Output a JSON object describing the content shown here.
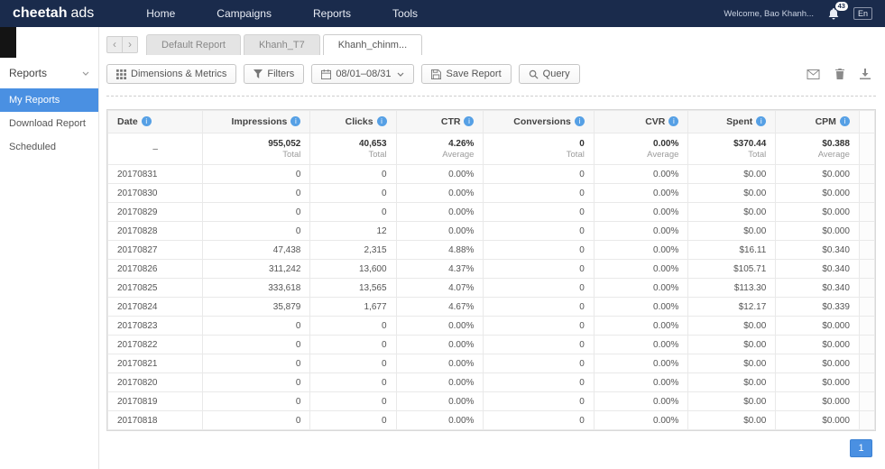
{
  "topbar": {
    "brand": {
      "bold": "cheetah",
      "light": "ads"
    },
    "nav": [
      "Home",
      "Campaigns",
      "Reports",
      "Tools"
    ],
    "welcome_label": "Welcome,",
    "username": "Bao Khanh...",
    "notification_count": "43",
    "language": "En"
  },
  "sidebar": {
    "section_label": "Reports",
    "items": [
      {
        "label": "My Reports",
        "active": true
      },
      {
        "label": "Download Report",
        "active": false
      },
      {
        "label": "Scheduled",
        "active": false
      }
    ]
  },
  "tabs": {
    "items": [
      {
        "label": "Default Report",
        "active": false
      },
      {
        "label": "Khanh_T7",
        "active": false
      },
      {
        "label": "Khanh_chinm...",
        "active": true
      }
    ]
  },
  "toolbar": {
    "dimensions_metrics_label": "Dimensions & Metrics",
    "filters_label": "Filters",
    "date_range_label": "08/01–08/31",
    "save_report_label": "Save Report",
    "query_label": "Query"
  },
  "table": {
    "columns": [
      "Date",
      "Impressions",
      "Clicks",
      "CTR",
      "Conversions",
      "CVR",
      "Spent",
      "CPM"
    ],
    "summary_row": {
      "date": "–",
      "cells": [
        {
          "value": "955,052",
          "sub": "Total"
        },
        {
          "value": "40,653",
          "sub": "Total"
        },
        {
          "value": "4.26%",
          "sub": "Average"
        },
        {
          "value": "0",
          "sub": "Total"
        },
        {
          "value": "0.00%",
          "sub": "Average"
        },
        {
          "value": "$370.44",
          "sub": "Total"
        },
        {
          "value": "$0.388",
          "sub": "Average"
        }
      ]
    },
    "rows": [
      [
        "20170831",
        "0",
        "0",
        "0.00%",
        "0",
        "0.00%",
        "$0.00",
        "$0.000"
      ],
      [
        "20170830",
        "0",
        "0",
        "0.00%",
        "0",
        "0.00%",
        "$0.00",
        "$0.000"
      ],
      [
        "20170829",
        "0",
        "0",
        "0.00%",
        "0",
        "0.00%",
        "$0.00",
        "$0.000"
      ],
      [
        "20170828",
        "0",
        "12",
        "0.00%",
        "0",
        "0.00%",
        "$0.00",
        "$0.000"
      ],
      [
        "20170827",
        "47,438",
        "2,315",
        "4.88%",
        "0",
        "0.00%",
        "$16.11",
        "$0.340"
      ],
      [
        "20170826",
        "311,242",
        "13,600",
        "4.37%",
        "0",
        "0.00%",
        "$105.71",
        "$0.340"
      ],
      [
        "20170825",
        "333,618",
        "13,565",
        "4.07%",
        "0",
        "0.00%",
        "$113.30",
        "$0.340"
      ],
      [
        "20170824",
        "35,879",
        "1,677",
        "4.67%",
        "0",
        "0.00%",
        "$12.17",
        "$0.339"
      ],
      [
        "20170823",
        "0",
        "0",
        "0.00%",
        "0",
        "0.00%",
        "$0.00",
        "$0.000"
      ],
      [
        "20170822",
        "0",
        "0",
        "0.00%",
        "0",
        "0.00%",
        "$0.00",
        "$0.000"
      ],
      [
        "20170821",
        "0",
        "0",
        "0.00%",
        "0",
        "0.00%",
        "$0.00",
        "$0.000"
      ],
      [
        "20170820",
        "0",
        "0",
        "0.00%",
        "0",
        "0.00%",
        "$0.00",
        "$0.000"
      ],
      [
        "20170819",
        "0",
        "0",
        "0.00%",
        "0",
        "0.00%",
        "$0.00",
        "$0.000"
      ],
      [
        "20170818",
        "0",
        "0",
        "0.00%",
        "0",
        "0.00%",
        "$0.00",
        "$0.000"
      ]
    ]
  },
  "pagination": {
    "pages": [
      "1"
    ],
    "current": "1"
  },
  "colors": {
    "topbar_bg": "#1a2b4c",
    "accent_blue": "#4a90e2",
    "info_icon_blue": "#56a0e5",
    "active_sidebar_bg": "#4a90e2"
  }
}
